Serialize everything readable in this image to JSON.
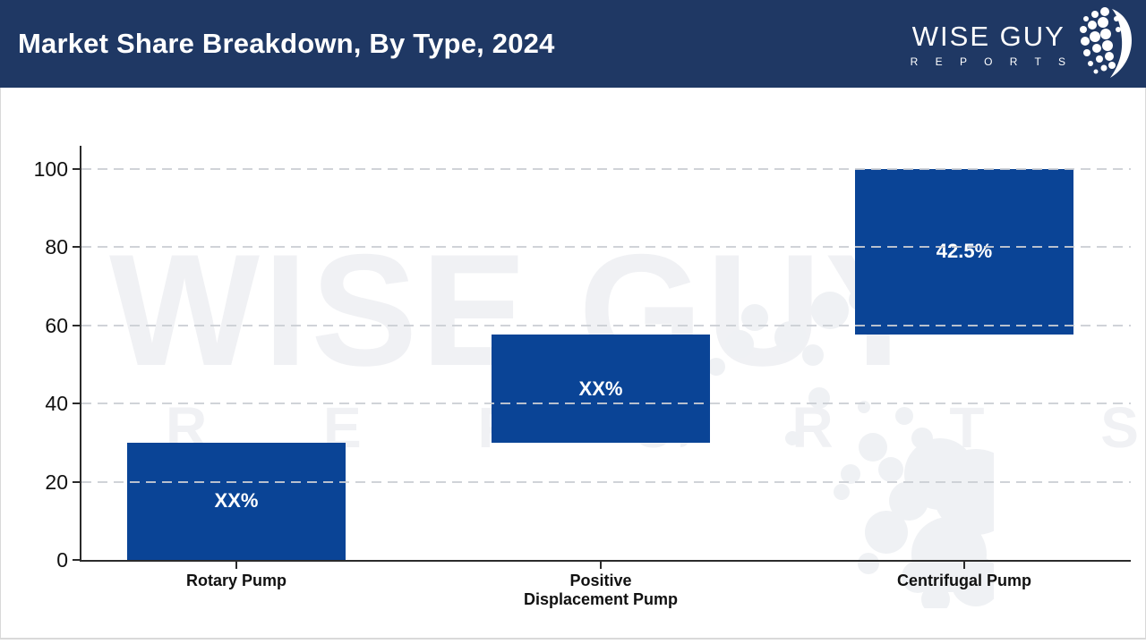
{
  "header": {
    "title": "Market Share Breakdown, By Type, 2024"
  },
  "logo": {
    "line1": "WISE GUY",
    "line2": "R E P O R T S"
  },
  "watermark": {
    "line1": "WISE GUY",
    "line2": "R E P O R T S"
  },
  "chart_data": {
    "type": "bar",
    "variant": "floating-stacked-segments",
    "title": "Market Share Breakdown, By Type, 2024",
    "categories": [
      "Rotary Pump",
      "Positive Displacement Pump",
      "Centrifugal Pump"
    ],
    "segments": [
      {
        "category": "Rotary Pump",
        "category_lines": [
          "Rotary Pump"
        ],
        "start": 0,
        "end": 30,
        "value": 30,
        "label": "XX%"
      },
      {
        "category": "Positive Displacement Pump",
        "category_lines": [
          "Positive",
          "Displacement Pump"
        ],
        "start": 30,
        "end": 57.5,
        "value": 27.5,
        "label": "XX%"
      },
      {
        "category": "Centrifugal Pump",
        "category_lines": [
          "Centrifugal Pump"
        ],
        "start": 57.5,
        "end": 100,
        "value": 42.5,
        "label": "42.5%"
      }
    ],
    "xlabel": "",
    "ylabel": "",
    "yticks": [
      0,
      20,
      40,
      60,
      80,
      100
    ],
    "ylim": [
      0,
      105
    ],
    "grid": "horizontal dashed, drawn above bars",
    "legend": "none",
    "bar_color": "#0a4496"
  },
  "colors": {
    "header_bg": "#1f3864",
    "bar_blue": "#0a4496",
    "watermark_gray": "#f0f1f4",
    "gridline_gray": "#cbced4",
    "axis_black": "#2b2b2b",
    "frame_gray": "#d9d9d9"
  }
}
